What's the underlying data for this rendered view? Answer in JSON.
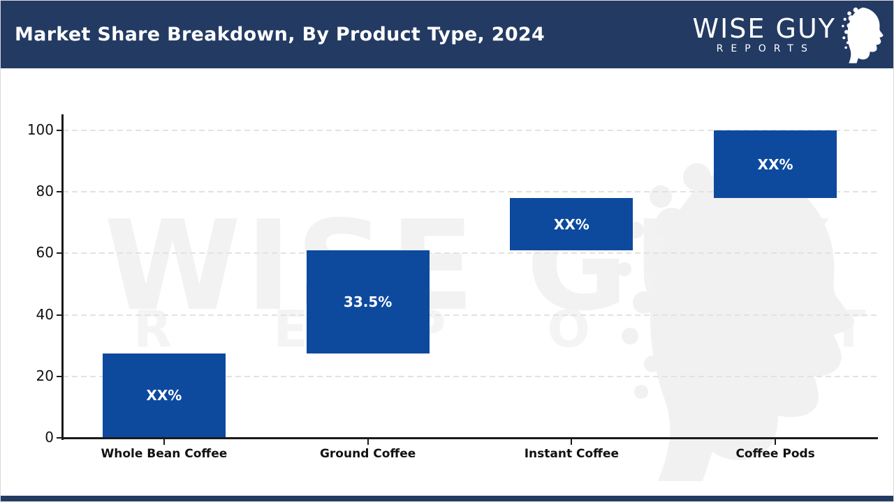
{
  "header": {
    "title": "Market Share Breakdown, By Product Type, 2024",
    "logo": {
      "line1": "WISE GUY",
      "line2": "REPORTS"
    }
  },
  "watermark": {
    "line1": "WISE GUY",
    "line2": "R E P O R T S"
  },
  "chart_data": {
    "type": "bar",
    "subtype": "waterfall",
    "title": "Market Share Breakdown, By Product Type, 2024",
    "categories": [
      "Whole Bean Coffee",
      "Ground Coffee",
      "Instant Coffee",
      "Coffee Pods"
    ],
    "series": [
      {
        "name": "Market Share (%)",
        "segments": [
          {
            "category": "Whole Bean Coffee",
            "start": 0,
            "end": 27.5,
            "label": "XX%"
          },
          {
            "category": "Ground Coffee",
            "start": 27.5,
            "end": 61,
            "label": "33.5%"
          },
          {
            "category": "Instant Coffee",
            "start": 61,
            "end": 78,
            "label": "XX%"
          },
          {
            "category": "Coffee Pods",
            "start": 78,
            "end": 100,
            "label": "XX%"
          }
        ]
      }
    ],
    "xlabel": "",
    "ylabel": "",
    "ylim": [
      0,
      100
    ],
    "yticks": [
      0,
      20,
      40,
      60,
      80,
      100
    ],
    "grid": "horizontal-dashed",
    "legend": "none"
  },
  "colors": {
    "header_bg": "#233a63",
    "footer_bg": "#233a63",
    "bar_fill": "#0d4a9e",
    "bar_label": "#ffffff",
    "axis": "#1a1a1a",
    "gridline": "#e2e2e2",
    "tick_text": "#111111",
    "watermark": "#f2f2f2"
  }
}
